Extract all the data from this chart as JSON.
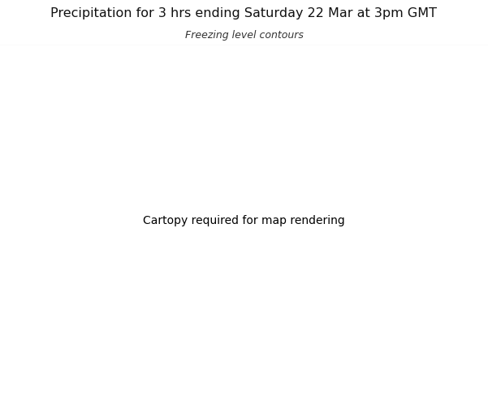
{
  "title": "Precipitation for 3 hrs ending Saturday 22 Mar at 3pm GMT",
  "subtitle": "Freezing level contours",
  "title_fontsize": 11.5,
  "subtitle_fontsize": 9,
  "fig_width": 6.01,
  "fig_height": 4.88,
  "dpi": 100,
  "background_color": "#ffffff",
  "ocean_color": "#c8d4e8",
  "land_color": "#909090",
  "land_edge_color": "#404040",
  "contour_color": "#dd0000",
  "map_bg": "#c8d4e8",
  "title_bg": "#f5f5f5",
  "extent": [
    -28,
    25,
    34,
    68
  ],
  "contour_lw": 1.1,
  "label_fontsize": 6.5,
  "label_bg": "#ffffff"
}
